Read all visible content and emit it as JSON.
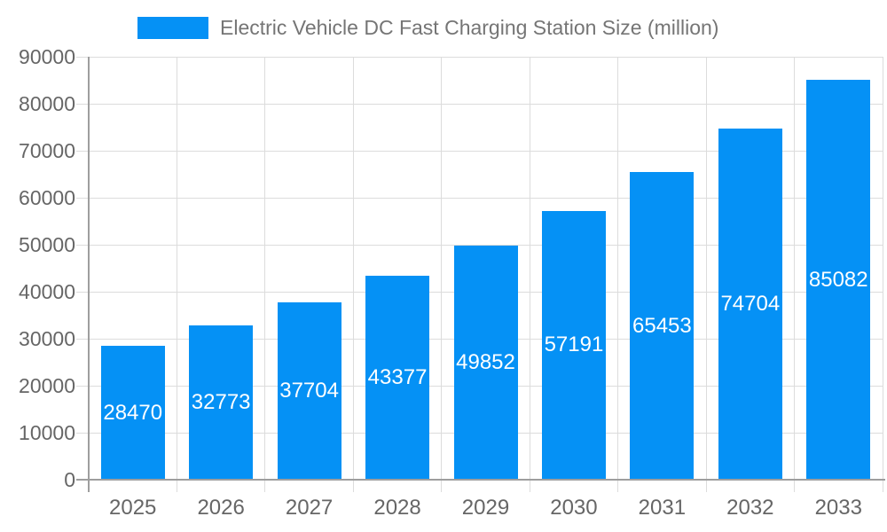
{
  "chart_data": {
    "type": "bar",
    "title": "Electric Vehicle DC Fast Charging Station Size (million)",
    "categories": [
      "2025",
      "2026",
      "2027",
      "2028",
      "2029",
      "2030",
      "2031",
      "2032",
      "2033"
    ],
    "values": [
      28470,
      32773,
      37704,
      43377,
      49852,
      57191,
      65453,
      74704,
      85082
    ],
    "value_labels": [
      "28470",
      "32773",
      "37704",
      "43377",
      "49852",
      "57191",
      "65453",
      "74704",
      "85082"
    ],
    "xlabel": "",
    "ylabel": "",
    "ylim": [
      0,
      90000
    ],
    "ytick_step": 10000,
    "ytick_labels": [
      "0",
      "10000",
      "20000",
      "30000",
      "40000",
      "50000",
      "60000",
      "70000",
      "80000",
      "90000"
    ],
    "legend_position": "top",
    "grid": true,
    "colors": {
      "bar": "#0591F5",
      "bar_value_text": "#FFFFFF",
      "axis_tick_text": "#666666",
      "title_text": "#757575",
      "gridline": "#DCDCDC",
      "axis_line": "#9E9E9E",
      "background": "#FFFFFF"
    }
  }
}
